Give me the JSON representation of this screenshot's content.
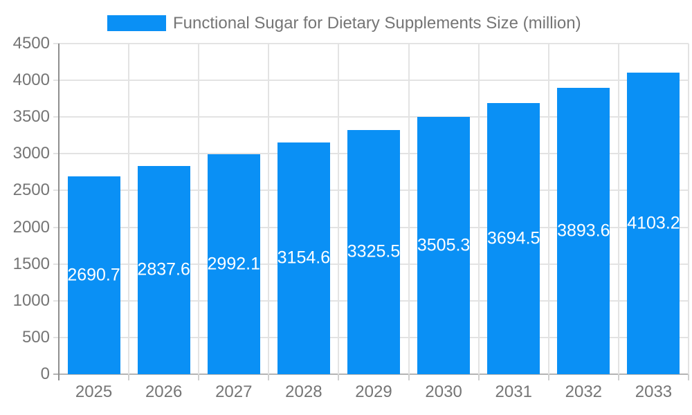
{
  "chart_data": {
    "type": "bar",
    "title": "Functional Sugar for Dietary Supplements Size (million)",
    "xlabel": "",
    "ylabel": "",
    "categories": [
      "2025",
      "2026",
      "2027",
      "2028",
      "2029",
      "2030",
      "2031",
      "2032",
      "2033"
    ],
    "values": [
      2690.7,
      2837.6,
      2992.1,
      3154.6,
      3325.5,
      3505.3,
      3694.5,
      3893.6,
      4103.2
    ],
    "series_name": "Functional Sugar for Dietary Supplements Size (million)",
    "ylim": [
      0,
      4500
    ],
    "yticks": [
      0,
      500,
      1000,
      1500,
      2000,
      2500,
      3000,
      3500,
      4000,
      4500
    ],
    "grid": true,
    "legend_position": "top",
    "data_labels_position": "inside-center",
    "colors": {
      "bar": "#0A90F5",
      "grid": "#E3E3E3",
      "axis_y": "#8F8F8F",
      "axis_x": "#B3B3B3",
      "tick": "#CFCFCF",
      "text": "#757575",
      "data_label": "#FFFFFF",
      "background": "#FFFFFF"
    }
  }
}
